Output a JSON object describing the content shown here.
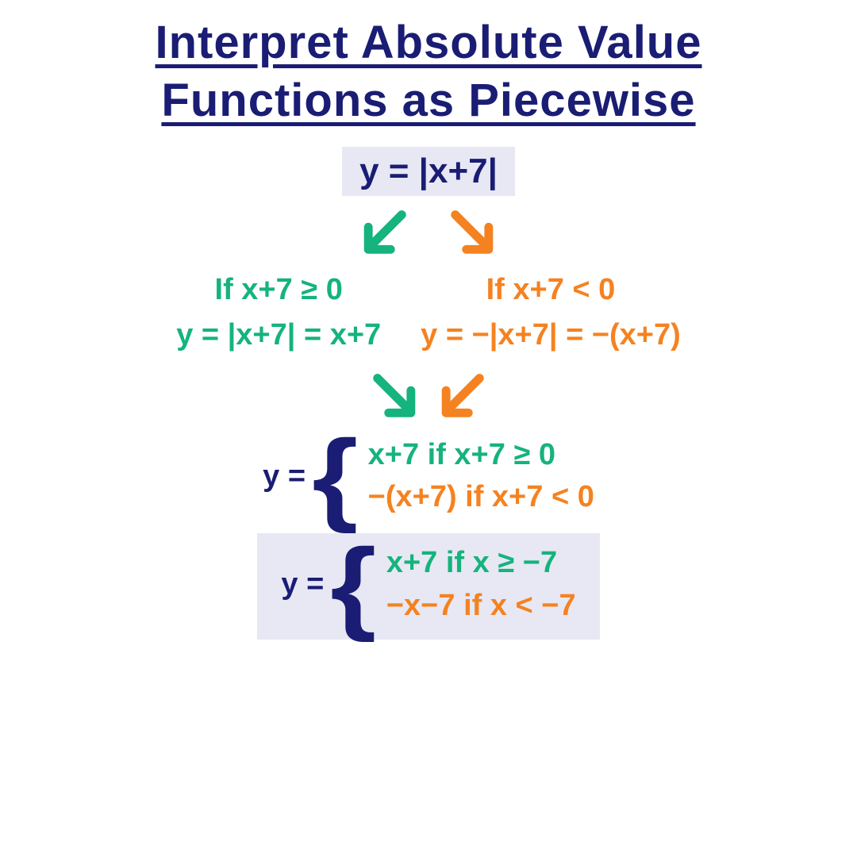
{
  "colors": {
    "navy": "#1a1d73",
    "green": "#15b37d",
    "orange": "#f58220",
    "box_bg": "#e7e8f3",
    "white": "#ffffff"
  },
  "title": {
    "line1": "Interpret Absolute Value",
    "line2": "Functions as Piecewise",
    "fontsize": 58
  },
  "main_eq": "y = |x+7|",
  "left_branch": {
    "cond": "If x+7 ≥ 0",
    "eq": "y = |x+7| = x+7"
  },
  "right_branch": {
    "cond": "If x+7 < 0",
    "eq": "y = −|x+7| = −(x+7)"
  },
  "piecewise1": {
    "y_eq": "y =",
    "line_a": "x+7 if x+7 ≥ 0",
    "line_b": "−(x+7) if x+7 < 0"
  },
  "piecewise2": {
    "y_eq": "y =",
    "line_a": "x+7 if x ≥ −7",
    "line_b": "−x−7 if x < −7"
  },
  "arrows": {
    "stroke_width": 14,
    "size": 78
  }
}
